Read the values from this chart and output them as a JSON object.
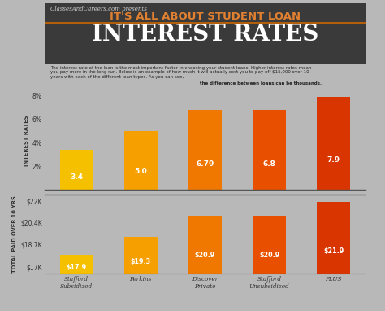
{
  "categories": [
    "Stafford\nSubsidized",
    "Perkins",
    "Discover\nPrivate",
    "Stafford\nUnsubsidized",
    "PLUS"
  ],
  "interest_rates": [
    3.4,
    5.0,
    6.79,
    6.8,
    7.9
  ],
  "total_paid": [
    17.9,
    19.3,
    20.9,
    20.9,
    21.9
  ],
  "bar_colors": [
    "#F5C000",
    "#F5A000",
    "#F07800",
    "#E85000",
    "#D93500"
  ],
  "interest_ylim": [
    0,
    8.4
  ],
  "interest_yticks": [
    2,
    4,
    6,
    8
  ],
  "interest_yticklabels": [
    "2%",
    "4%",
    "6%",
    "8%"
  ],
  "total_ylim": [
    16.5,
    22.5
  ],
  "total_yticks": [
    17,
    18.7,
    20.4,
    22
  ],
  "total_yticklabels": [
    "$17K",
    "$18.7K",
    "$20.4K",
    "$22K"
  ],
  "interest_ylabel": "INTEREST RATES",
  "total_ylabel": "TOTAL PAID OVER 10 YRS",
  "title_line1": "IT'S ALL ABOUT STUDENT LOAN",
  "title_line2": "INTEREST RATES",
  "subtitle": "ClassesAndCareers.com presents",
  "bg_color": "#B8B8B8",
  "header_bg": "#3A3A3A",
  "interest_label_values": [
    "3.4",
    "5.0",
    "6.79",
    "6.8",
    "7.9"
  ],
  "total_label_values": [
    "$17.9",
    "$19.3",
    "$20.9",
    "$20.9",
    "$21.9"
  ]
}
